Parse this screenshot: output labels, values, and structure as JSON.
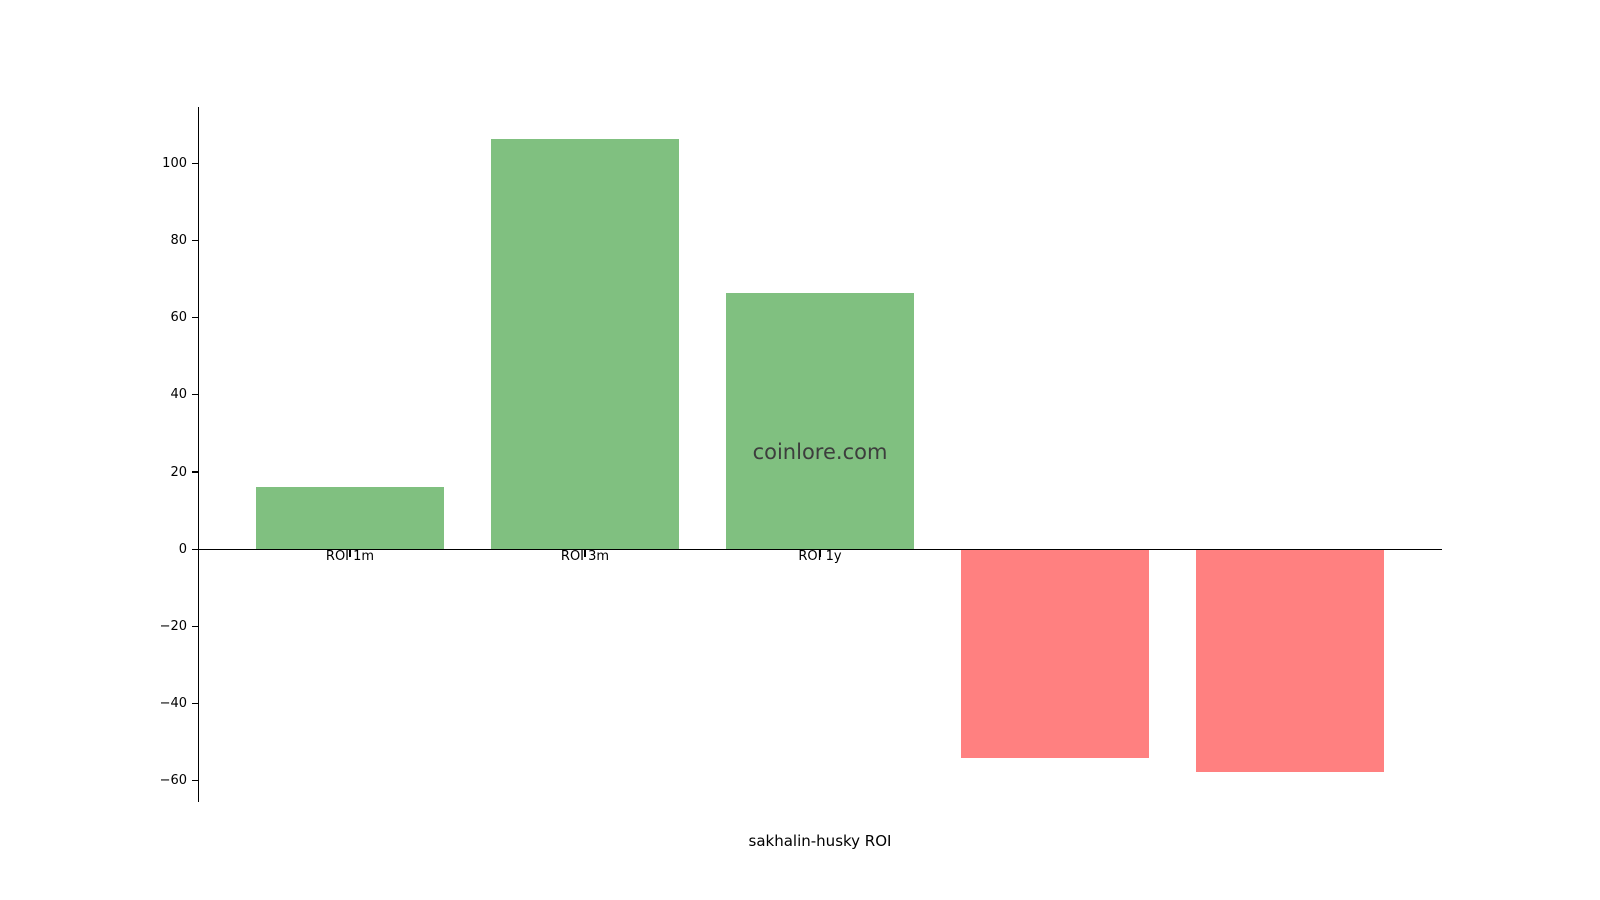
{
  "watermark": {
    "text": "coinlore.com",
    "color": "#3d3d3d"
  },
  "title": {
    "text": "sakhalin-husky ROI",
    "color": "#000000"
  },
  "chart_data": {
    "type": "bar",
    "title": "sakhalin-husky ROI",
    "watermark": "coinlore.com",
    "categories": [
      "ROI 1m",
      "ROI 3m",
      "ROI 1y",
      "",
      ""
    ],
    "values": [
      16,
      106.4,
      66.3,
      -54.1,
      -57.6
    ],
    "bar_colors": [
      "#80c080",
      "#80c080",
      "#80c080",
      "#ff8080",
      "#ff8080"
    ],
    "positive_color": "#80c080",
    "negative_color": "#ff8080",
    "y_ticks": [
      100,
      80,
      60,
      40,
      20,
      0,
      -20,
      -40,
      -60
    ],
    "y_tick_labels": [
      "100",
      "80",
      "60",
      "40",
      "20",
      "0",
      "−20",
      "−40",
      "−60"
    ],
    "ylim": [
      -65.5,
      114.6
    ],
    "xlabel": "sakhalin-husky ROI",
    "ylabel": "",
    "grid": false,
    "legend": null,
    "axis_color": "#000000"
  }
}
